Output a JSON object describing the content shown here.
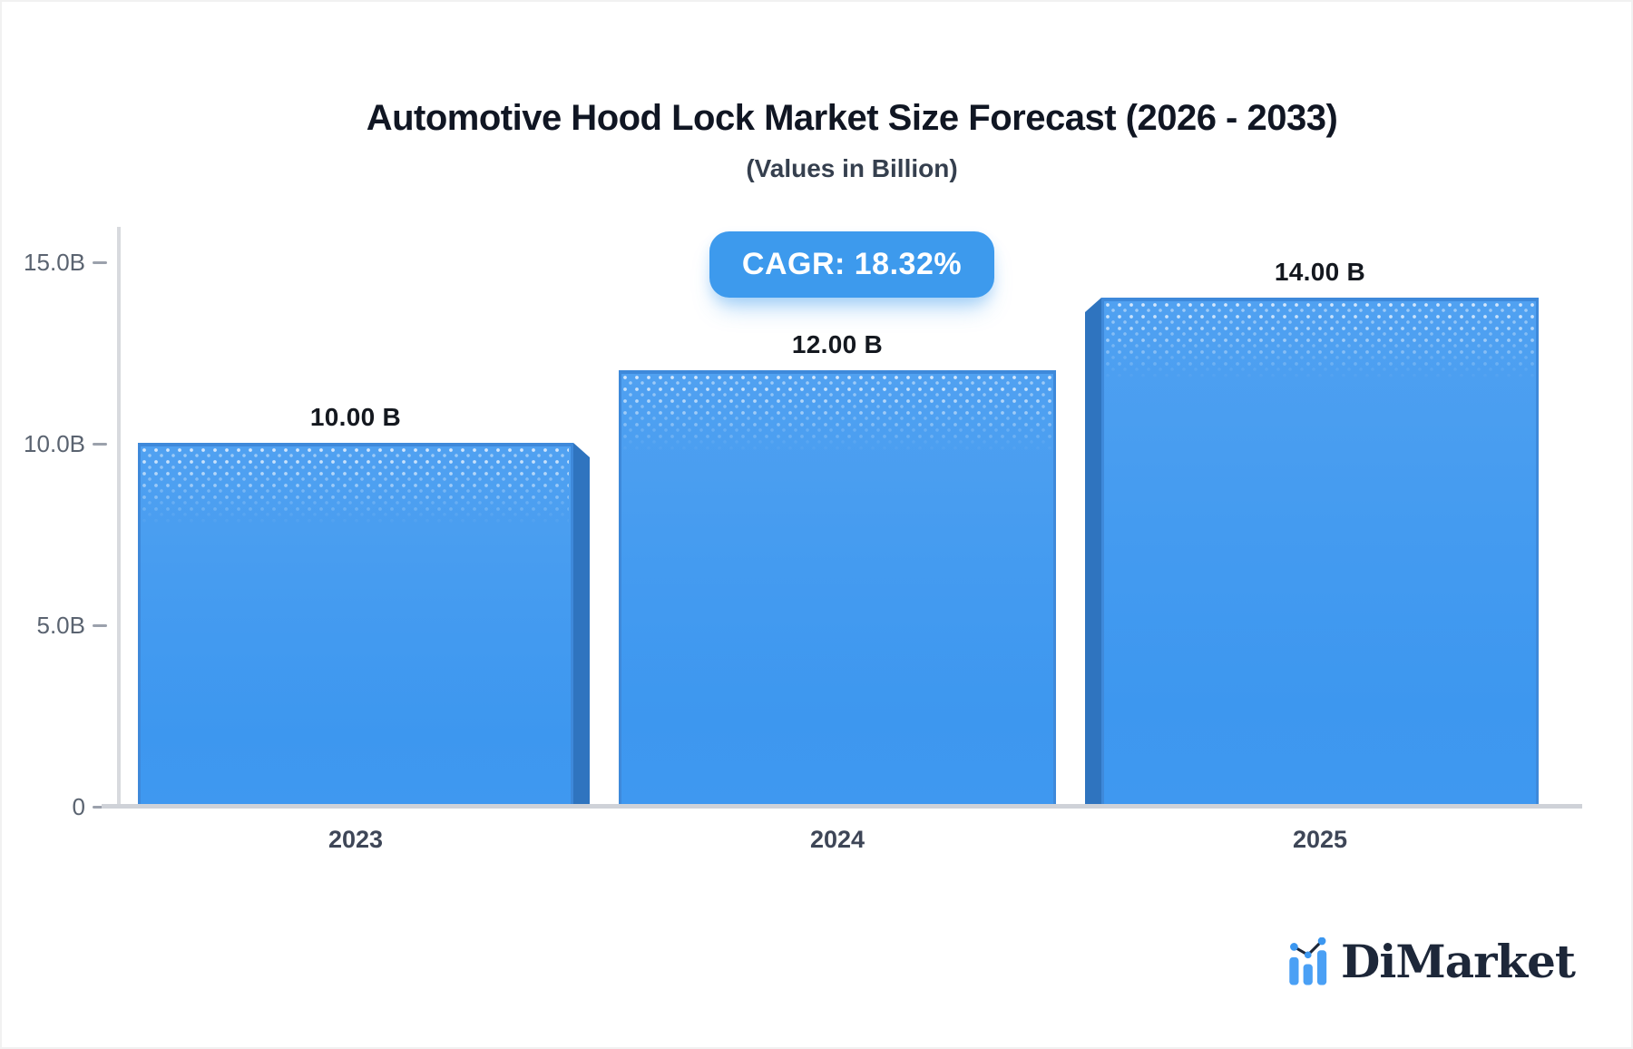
{
  "chart": {
    "title": "Automotive Hood Lock Market Size Forecast (2026 - 2033)",
    "subtitle": "(Values in Billion)",
    "cagr_label": "CAGR: 18.32%",
    "colors": {
      "badge_blue": "#3d9aed",
      "bar_face": "#459bf0",
      "bar_side": "#2f74bf",
      "axis_gray": "#cfd2d8",
      "logo_navy": "#1d2739",
      "logo_blue": "#4aa0f5"
    }
  },
  "chart_data": {
    "type": "bar",
    "title": "Automotive Hood Lock Market Size Forecast (2026 - 2033)",
    "subtitle": "(Values in Billion)",
    "cagr": "18.32%",
    "unit": "Billion",
    "categories": [
      "2023",
      "2024",
      "2025"
    ],
    "values": [
      10,
      12,
      14
    ],
    "value_labels": [
      "10.00 B",
      "12.00 B",
      "14.00 B"
    ],
    "ylim": [
      0,
      15
    ],
    "y_tick_values": [
      15,
      10,
      5,
      0
    ],
    "y_tick_labels": [
      "15.0B",
      "10.0B",
      "5.0B",
      "0"
    ],
    "grid": "off",
    "legend": "none"
  },
  "footer": {
    "brand": "DiMarket"
  }
}
